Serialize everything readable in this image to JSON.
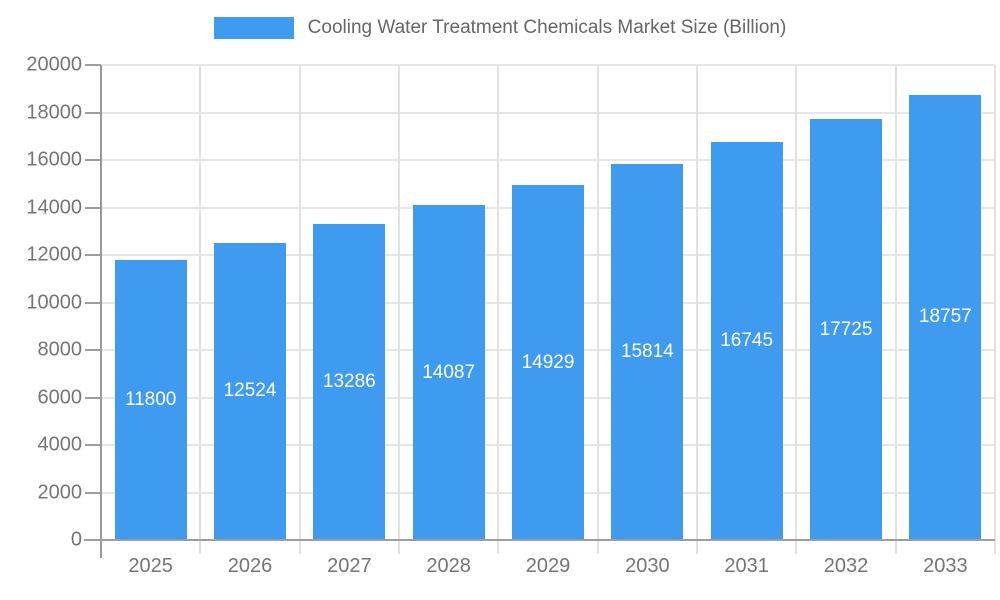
{
  "chart_data": {
    "type": "bar",
    "title": "Cooling Water Treatment Chemicals Market Size (Billion)",
    "legend": {
      "position": "top-center",
      "entries": [
        "Cooling Water Treatment Chemicals Market Size (Billion)"
      ]
    },
    "categories": [
      "2025",
      "2026",
      "2027",
      "2028",
      "2029",
      "2030",
      "2031",
      "2032",
      "2033"
    ],
    "series": [
      {
        "name": "Cooling Water Treatment Chemicals Market Size (Billion)",
        "values": [
          11800,
          12524,
          13286,
          14087,
          14929,
          15814,
          16745,
          17725,
          18757
        ]
      }
    ],
    "value_labels": [
      "11800",
      "12524",
      "13286",
      "14087",
      "14929",
      "15814",
      "16745",
      "17725",
      "18757"
    ],
    "xlabel": "",
    "ylabel": "",
    "ylim": [
      0,
      20000
    ],
    "y_tick_step": 2000,
    "y_tick_labels": [
      "0",
      "2000",
      "4000",
      "6000",
      "8000",
      "10000",
      "12000",
      "14000",
      "16000",
      "18000",
      "20000"
    ],
    "grid": "horizontal and vertical category boundaries",
    "colors": {
      "bar": "#3E9BEF",
      "value_label": "#FFFFFF",
      "axis_label": "#757575",
      "legend_text": "#666666",
      "gridline": "#E6E6E6",
      "axis_line": "#999999"
    }
  }
}
